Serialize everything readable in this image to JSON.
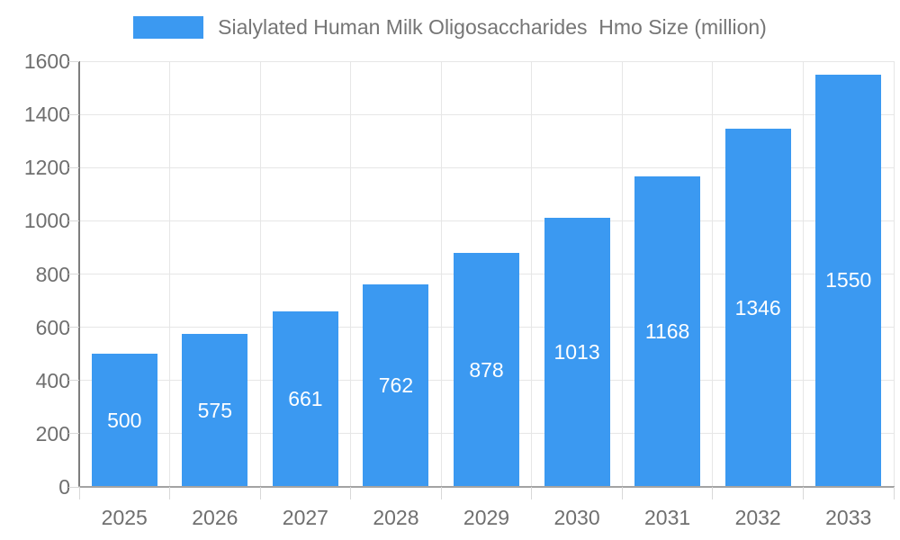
{
  "legend": {
    "series_label": "Sialylated Human Milk Oligosaccharides  Hmo Size (million)"
  },
  "chart_data": {
    "type": "bar",
    "title": "Sialylated Human Milk Oligosaccharides  Hmo Size (million)",
    "categories": [
      "2025",
      "2026",
      "2027",
      "2028",
      "2029",
      "2030",
      "2031",
      "2032",
      "2033"
    ],
    "series": [
      {
        "name": "Sialylated Human Milk Oligosaccharides  Hmo Size (million)",
        "values": [
          500,
          575,
          661,
          762,
          878,
          1013,
          1168,
          1346,
          1550
        ]
      }
    ],
    "values": [
      500,
      575,
      661,
      762,
      878,
      1013,
      1168,
      1346,
      1550
    ],
    "xlabel": "",
    "ylabel": "",
    "ylim": [
      0,
      1600
    ],
    "yticks": [
      0,
      200,
      400,
      600,
      800,
      1000,
      1200,
      1400,
      1600
    ],
    "grid": true,
    "legend_position": "top",
    "value_labels": "inside-center-white"
  },
  "colors": {
    "bar": "#3b99f1",
    "value_label": "#ffffff",
    "grid": "#e6e6e6",
    "y_axis_line": "#7d7d7d",
    "x_axis_line": "#a3a3a3",
    "tick": "#d8d8d8",
    "axis_label_text": "#6f6f6f",
    "legend_text": "#757575",
    "background": "#ffffff"
  }
}
